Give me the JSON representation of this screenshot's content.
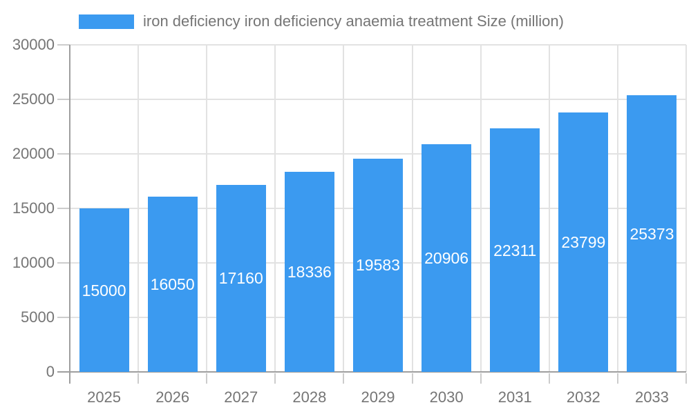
{
  "legend": {
    "label": "iron deficiency iron deficiency anaemia treatment Size (million)"
  },
  "chart_data": {
    "type": "bar",
    "title": "",
    "xlabel": "",
    "ylabel": "",
    "categories": [
      "2025",
      "2026",
      "2027",
      "2028",
      "2029",
      "2030",
      "2031",
      "2032",
      "2033"
    ],
    "series": [
      {
        "name": "iron deficiency iron deficiency anaemia treatment Size (million)",
        "values": [
          15000,
          16050,
          17160,
          18336,
          19583,
          20906,
          22311,
          23799,
          25373
        ]
      }
    ],
    "bar_labels": [
      "15000",
      "16050",
      "17160",
      "18336",
      "19583",
      "20906",
      "22311",
      "23799",
      "25373"
    ],
    "ylim": [
      0,
      30000
    ],
    "yticks": [
      0,
      5000,
      10000,
      15000,
      20000,
      25000,
      30000
    ],
    "ytick_labels": [
      "0",
      "5000",
      "10000",
      "15000",
      "20000",
      "25000",
      "30000"
    ],
    "grid": true,
    "legend_position": "top-left"
  },
  "colors": {
    "bar": "#3b9af0",
    "grid": "#e2e2e2",
    "axis": "#9e9e9e",
    "tick": "#cccccc",
    "text": "#757575",
    "bar_label": "#ffffff",
    "background": "#ffffff"
  }
}
